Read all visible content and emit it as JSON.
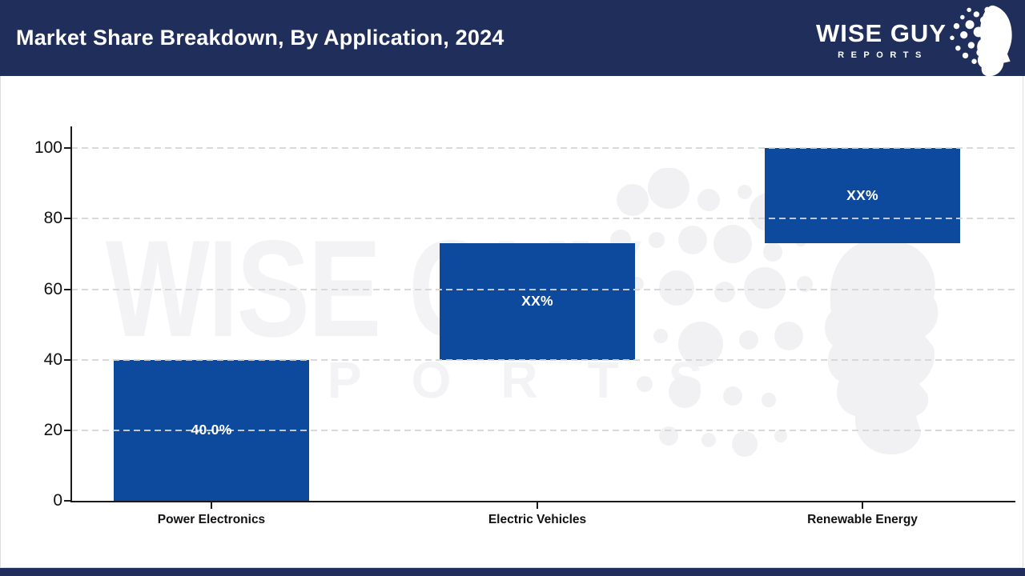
{
  "header": {
    "title": "Market Share Breakdown, By Application, 2024",
    "brand": {
      "line1": "WISE GUY",
      "line2": "REPORTS"
    }
  },
  "watermark": {
    "line1": "WISE GUY",
    "line2": "REPORTS"
  },
  "chart_data": {
    "type": "bar",
    "subtype": "waterfall",
    "title": "Market Share Breakdown, By Application, 2024",
    "categories": [
      "Power Electronics",
      "Electric Vehicles",
      "Renewable Energy"
    ],
    "segments": [
      {
        "category": "Power Electronics",
        "start": 0,
        "end": 40,
        "value": 40,
        "label": "40.0%"
      },
      {
        "category": "Electric Vehicles",
        "start": 40,
        "end": 73,
        "value": 33,
        "label": "XX%"
      },
      {
        "category": "Renewable Energy",
        "start": 73,
        "end": 100,
        "value": 27,
        "label": "XX%"
      }
    ],
    "yticks": [
      0,
      20,
      40,
      60,
      80,
      100
    ],
    "ylim": [
      0,
      106
    ],
    "xlabel": "",
    "ylabel": "",
    "grid": "dashed-horizontal",
    "legend": "none",
    "bar_color": "#0d4a9d",
    "bar_label_color": "#ffffff"
  },
  "colors": {
    "header_bg": "#202e5c",
    "footer_bg": "#202e5c",
    "bar": "#0d4a9d",
    "grid": "#d5d5d5",
    "watermark": "#f3f3f5",
    "axis_text": "#111111"
  }
}
